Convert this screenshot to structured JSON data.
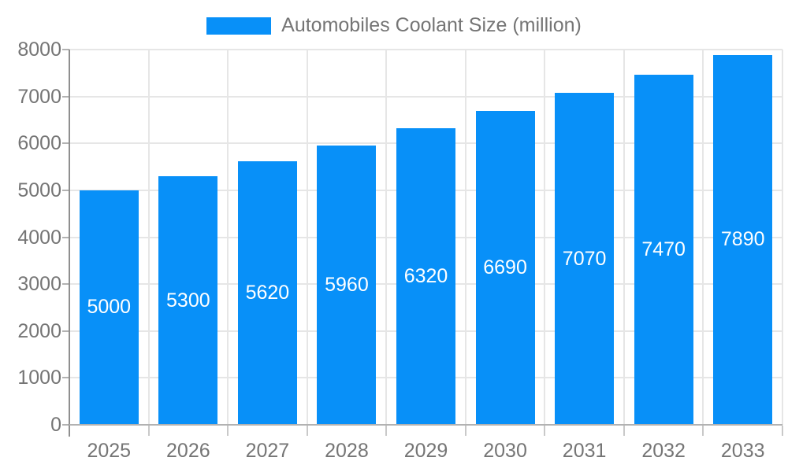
{
  "legend": {
    "label": "Automobiles Coolant Size (million)"
  },
  "chart_data": {
    "type": "bar",
    "title": "Automobiles Coolant Size (million)",
    "categories": [
      "2025",
      "2026",
      "2027",
      "2028",
      "2029",
      "2030",
      "2031",
      "2032",
      "2033"
    ],
    "values": [
      5000,
      5300,
      5620,
      5960,
      6320,
      6690,
      7070,
      7470,
      7890
    ],
    "xlabel": "",
    "ylabel": "",
    "ylim": [
      0,
      8000
    ],
    "yticks": [
      0,
      1000,
      2000,
      3000,
      4000,
      5000,
      6000,
      7000,
      8000
    ],
    "grid": true,
    "legend_position": "top-center",
    "bar_color": "#0890f8",
    "value_label_color": "#ffffff",
    "value_labels_inside": true,
    "axis_text_color": "#757575",
    "gridline_color": "#e6e6e6"
  }
}
